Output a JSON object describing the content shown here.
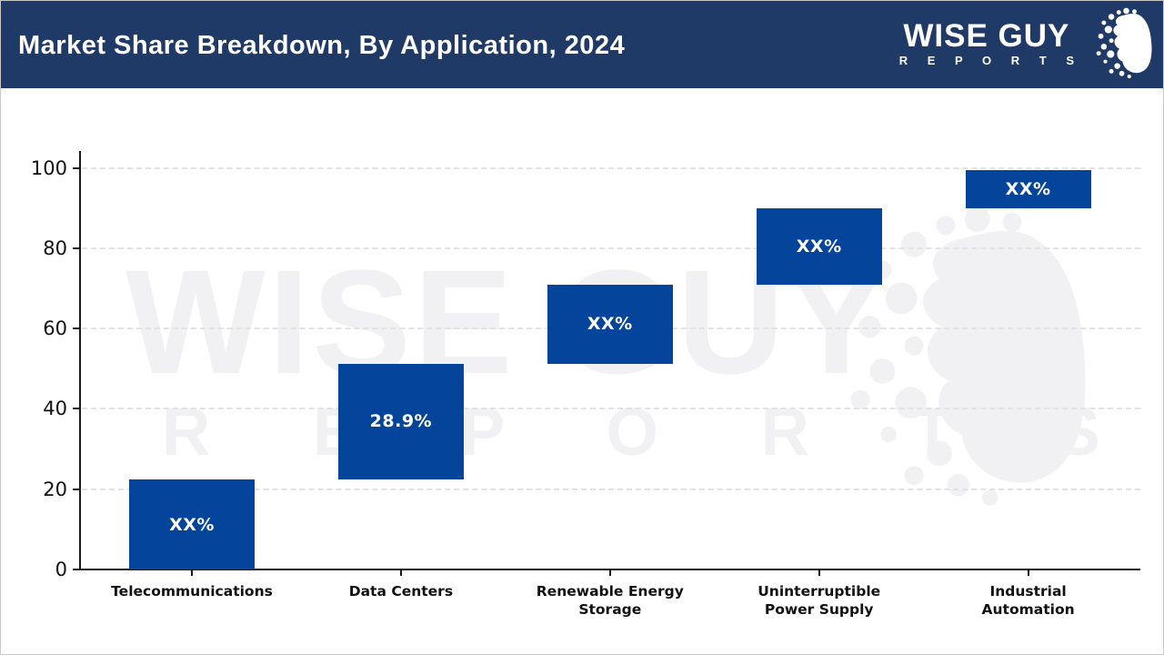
{
  "header": {
    "title": "Market Share Breakdown, By Application, 2024",
    "logo": {
      "line1": "WISE GUY",
      "line2": "R E P O R T S"
    }
  },
  "watermark": {
    "line1": "WISE GUY",
    "line2": "R E P O R T S"
  },
  "colors": {
    "header_bg": "#1f3a66",
    "bar": "#05449b",
    "grid": "#e2e2e2",
    "watermark": "#f1f1f4",
    "axis": "#1a1a1a",
    "bar_label_text": "#ffffff",
    "title_text": "#ffffff"
  },
  "chart_data": {
    "type": "bar",
    "subtype": "waterfall",
    "title": "Market Share Breakdown, By Application, 2024",
    "xlabel": "",
    "ylabel": "",
    "ylim": [
      0,
      104
    ],
    "yticks": [
      0,
      20,
      40,
      60,
      80,
      100
    ],
    "grid": "horizontal-dashed",
    "legend": "none",
    "categories": [
      "Telecommunications",
      "Data Centers",
      "Renewable Energy\nStorage",
      "Uninterruptible\nPower Supply",
      "Industrial\nAutomation"
    ],
    "bars": [
      {
        "category": "Telecommunications",
        "start": 0,
        "end": 22.4,
        "height": 22.4,
        "label": "XX%"
      },
      {
        "category": "Data Centers",
        "start": 22.4,
        "end": 51.3,
        "height": 28.9,
        "label": "28.9%"
      },
      {
        "category": "Renewable Energy Storage",
        "start": 51.3,
        "end": 70.9,
        "height": 19.6,
        "label": "XX%"
      },
      {
        "category": "Uninterruptible Power Supply",
        "start": 70.9,
        "end": 90.0,
        "height": 19.1,
        "label": "XX%"
      },
      {
        "category": "Industrial Automation",
        "start": 90.0,
        "end": 99.5,
        "height": 9.5,
        "label": "XX%"
      }
    ]
  }
}
